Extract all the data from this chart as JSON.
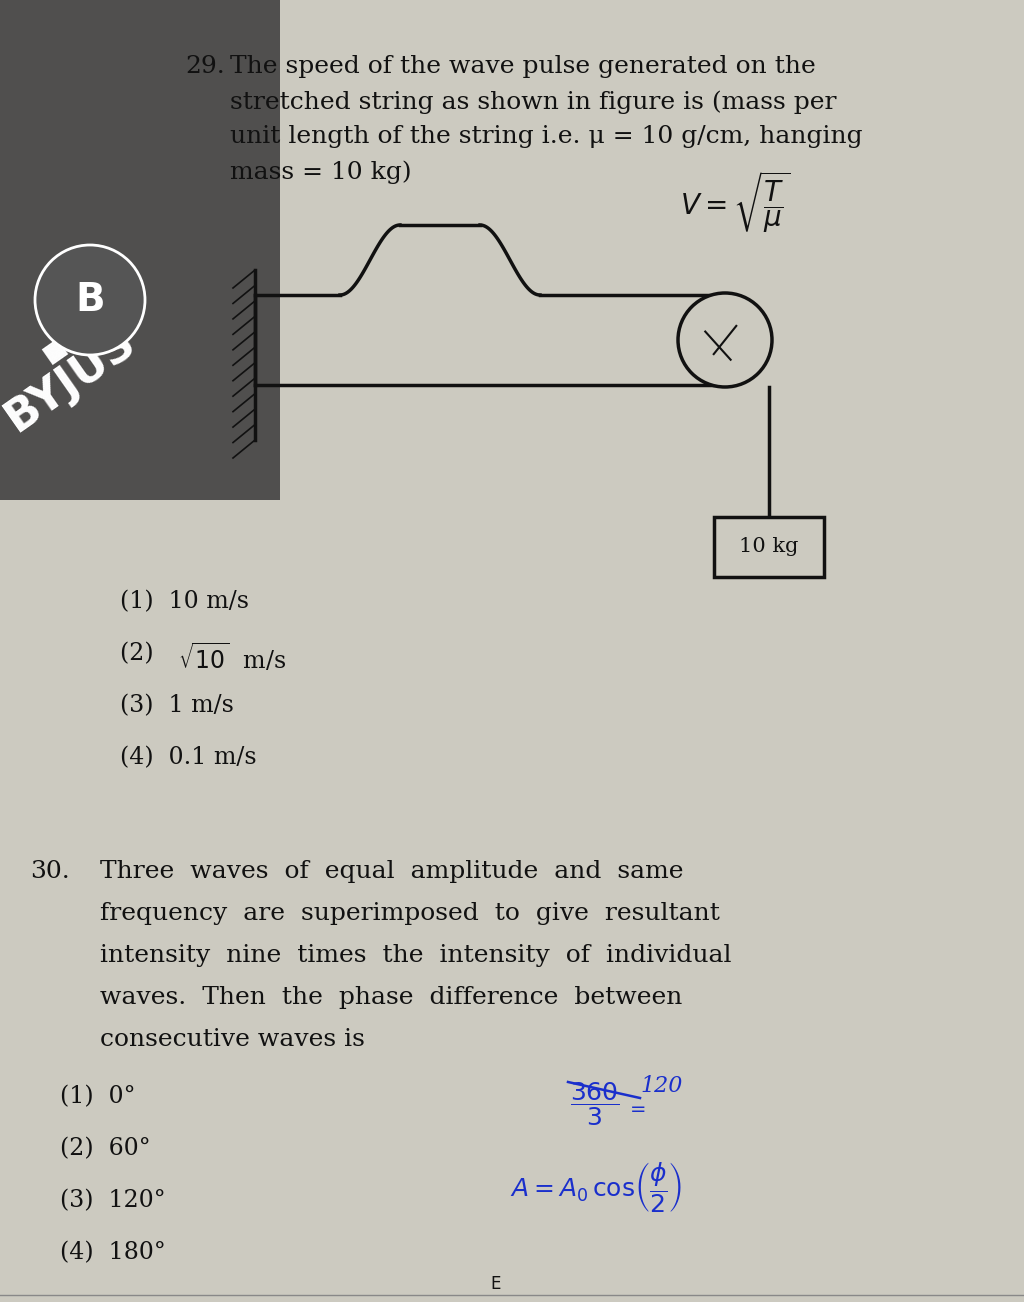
{
  "bg_color": "#cccac0",
  "byjus_overlay_color": "#555555",
  "q29_number": "29.",
  "q29_text_line1": "The speed of the wave pulse generated on the",
  "q29_text_line2": "stretched string as shown in figure is (mass per",
  "q29_text_line3": "unit length of the string i.e. μ = 10 g/cm, hanging",
  "q29_text_line4": "mass = 10 kg)",
  "options_29": [
    "(1)  10 m/s",
    "(2)  √10 m/s",
    "(3)  1 m/s",
    "(4)  0.1 m/s"
  ],
  "q30_number": "30.",
  "q30_lines": [
    "Three  waves  of  equal  amplitude  and  same",
    "frequency  are  superimposed  to  give  resultant",
    "intensity  nine  times  the  intensity  of  individual",
    "waves.  Then  the  phase  difference  between",
    "consecutive waves is"
  ],
  "options_30": [
    "(1)  0°",
    "(2)  60°",
    "(3)  120°",
    "(4)  180°"
  ],
  "text_color": "#111111",
  "annot_color": "#1a2fcc",
  "font_size_q": 18,
  "font_size_opt": 17,
  "font_size_annot": 16
}
